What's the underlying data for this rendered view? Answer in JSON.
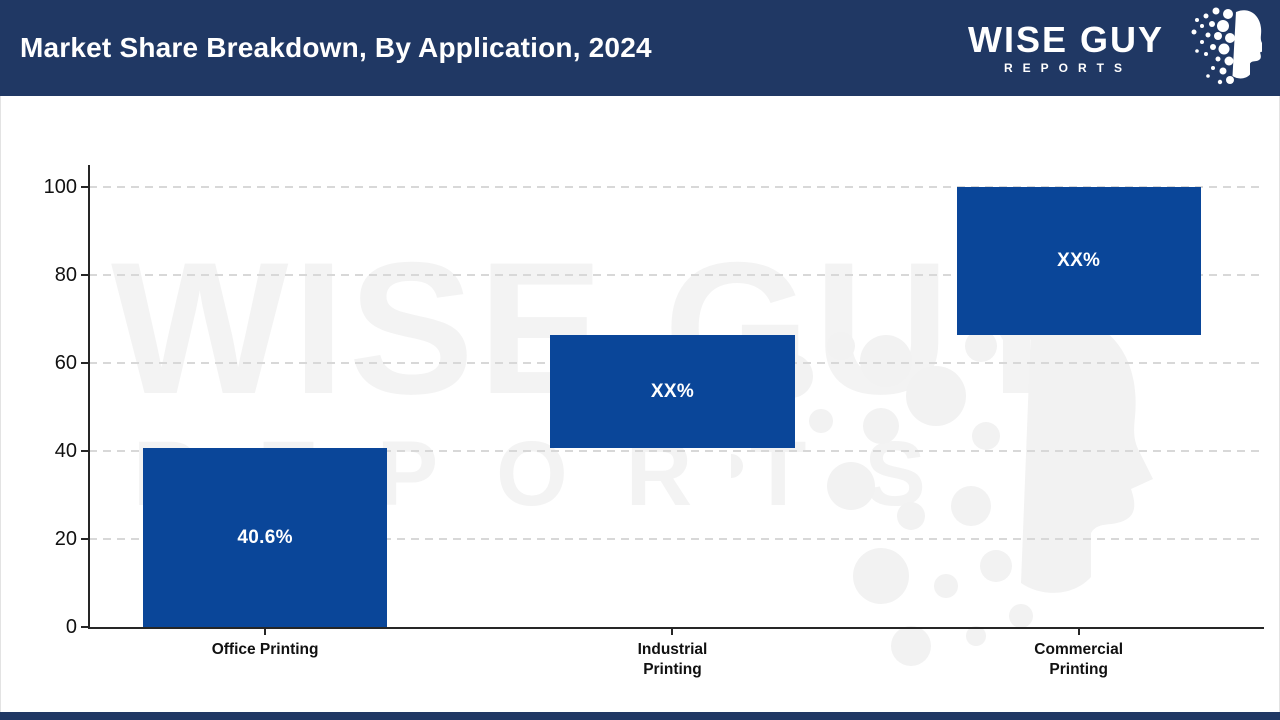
{
  "header": {
    "title": "Market Share Breakdown, By Application, 2024",
    "logo": {
      "line1": "WISE GUY",
      "line2": "REPORTS"
    }
  },
  "watermark": {
    "line1": "WISE GUY",
    "line2": "REPORTS"
  },
  "colors": {
    "header_bg": "#203864",
    "bar_blue": "#0a4699",
    "axis": "#262626",
    "grid": "#d8d8d8",
    "watermark": "#f3f3f3",
    "title_text": "#ffffff",
    "tick_text": "#111111"
  },
  "chart_data": {
    "type": "bar",
    "subtype": "waterfall",
    "title": "Market Share Breakdown, By Application, 2024",
    "categories": [
      "Office Printing",
      "Industrial Printing",
      "Commercial Printing"
    ],
    "segments": [
      {
        "category": "Office Printing",
        "start": 0,
        "end": 40.6,
        "label": "40.6%"
      },
      {
        "category": "Industrial Printing",
        "start": 40.6,
        "end": 66.3,
        "label": "XX%"
      },
      {
        "category": "Commercial Printing",
        "start": 66.3,
        "end": 100,
        "label": "XX%"
      }
    ],
    "xtick_label_lines": [
      [
        "Office Printing"
      ],
      [
        "Industrial",
        "Printing"
      ],
      [
        "Commercial",
        "Printing"
      ]
    ],
    "bar_color": "#0a4699",
    "xlabel": "",
    "ylabel": "",
    "ylim": [
      0,
      100
    ],
    "yticks": [
      0,
      20,
      40,
      60,
      80,
      100
    ],
    "grid": "horizontal-dashed",
    "legend": "none",
    "layout": {
      "bar_centers_frac": [
        0.15,
        0.497,
        0.843
      ],
      "bar_width_frac": 0.208
    }
  }
}
